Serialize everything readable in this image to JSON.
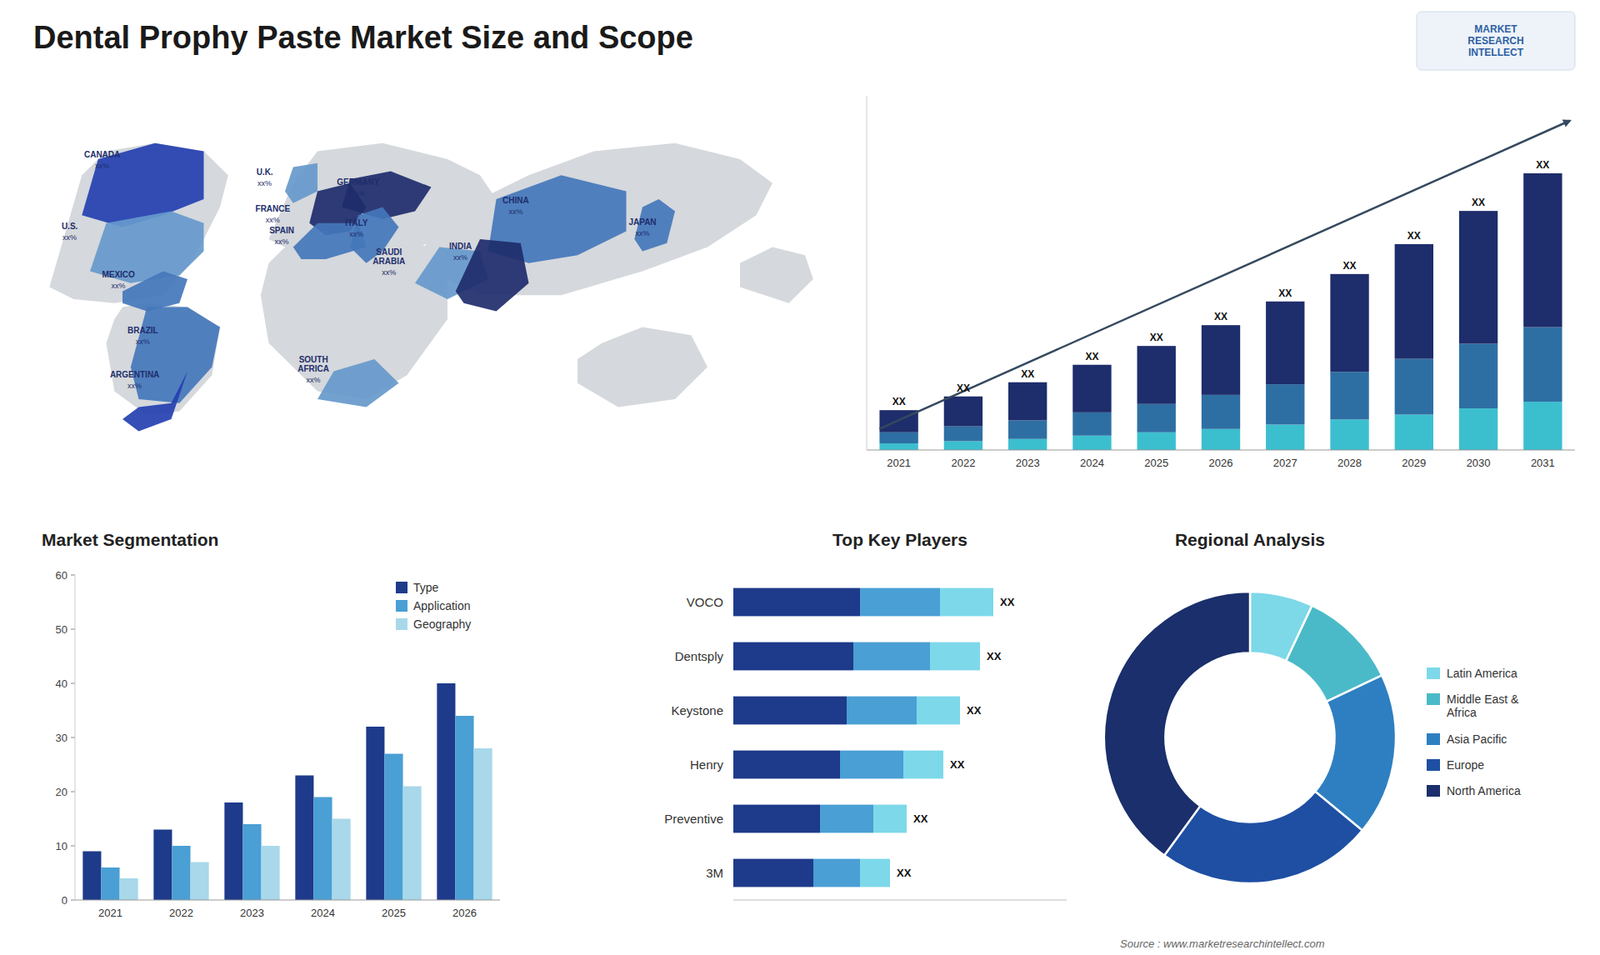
{
  "chart_data": [
    {
      "type": "map",
      "title": "Dental Prophy Paste Market Size and Scope",
      "categories": [
        "CANADA",
        "U.S.",
        "MEXICO",
        "BRAZIL",
        "ARGENTINA",
        "U.K.",
        "FRANCE",
        "SPAIN",
        "GERMANY",
        "ITALY",
        "SAUDI\nARABIA",
        "SOUTH\nAFRICA",
        "CHINA",
        "INDIA",
        "JAPAN"
      ],
      "colors": [
        "#2440b0",
        "#6699cc",
        "#4477bb",
        "#4477bb",
        "#2440b0",
        "#6699cc",
        "#1e2d6b",
        "#4477bb",
        "#1e2d6b",
        "#4477bb",
        "#6699cc",
        "#6699cc",
        "#4477bb",
        "#1e2d6b",
        "#4477bb"
      ],
      "annotations": [
        "xx%",
        "xx%",
        "xx%",
        "xx%",
        "xx%",
        "xx%",
        "xx%",
        "xx%",
        "xx%",
        "xx%",
        "xx%",
        "xx%",
        "xx%",
        "xx%",
        "xx%",
        "MARKET\nRESEARCH\nINTELLECT",
        "Source : www.marketresearchintellect.com"
      ]
    },
    {
      "type": "bar",
      "stacked": true,
      "categories": [
        "2021",
        "2022",
        "2023",
        "2024",
        "2025",
        "2026",
        "2027",
        "2028",
        "2029",
        "2030",
        "2031"
      ],
      "series": [
        {
          "color": "#3bbfcf",
          "values": [
            0.3,
            0.4,
            0.5,
            0.65,
            0.8,
            0.95,
            1.15,
            1.38,
            1.6,
            1.88,
            2.18
          ]
        },
        {
          "color": "#2e6fa3",
          "values": [
            0.5,
            0.67,
            0.84,
            1.05,
            1.28,
            1.54,
            1.82,
            2.15,
            2.52,
            2.92,
            3.37
          ]
        },
        {
          "color": "#1e2d6b",
          "values": [
            1.0,
            1.35,
            1.72,
            2.15,
            2.62,
            3.15,
            3.74,
            4.42,
            5.18,
            6.0,
            6.95
          ]
        }
      ],
      "ylim": [
        0,
        16
      ],
      "tick_labels": "x",
      "grid": false,
      "annotations": [
        "XX",
        "XX",
        "XX",
        "XX",
        "XX",
        "XX",
        "XX",
        "XX",
        "XX",
        "XX",
        "XX"
      ]
    },
    {
      "type": "bar",
      "title": "Market Segmentation",
      "categories": [
        "2021",
        "2022",
        "2023",
        "2024",
        "2025",
        "2026"
      ],
      "series": [
        {
          "name": "Type",
          "color": "#1e3a8a",
          "values": [
            9,
            13,
            18,
            23,
            32,
            40
          ]
        },
        {
          "name": "Application",
          "color": "#4a9fd4",
          "values": [
            6,
            10,
            14,
            19,
            27,
            34
          ]
        },
        {
          "name": "Geography",
          "color": "#a8d8ea",
          "values": [
            4,
            7,
            10,
            15,
            21,
            28
          ]
        }
      ],
      "ylim": [
        0,
        60
      ],
      "yticks": [
        0,
        10,
        20,
        30,
        40,
        50,
        60
      ],
      "legend": "upper right",
      "grid": false
    },
    {
      "type": "bar",
      "orientation": "horizontal",
      "stacked": true,
      "title": "Top Key Players",
      "categories": [
        "VOCO",
        "Dentsply",
        "Keystone",
        "Henry",
        "Preventive",
        "3M"
      ],
      "series": [
        {
          "color": "#1e3a8a",
          "values": [
            0.38,
            0.36,
            0.34,
            0.32,
            0.26,
            0.24
          ]
        },
        {
          "color": "#4a9fd4",
          "values": [
            0.24,
            0.23,
            0.21,
            0.19,
            0.16,
            0.14
          ]
        },
        {
          "color": "#7dd8ea",
          "values": [
            0.16,
            0.15,
            0.13,
            0.12,
            0.1,
            0.09
          ]
        }
      ],
      "xlim": [
        0,
        1
      ],
      "tick_labels": "y",
      "grid": false,
      "annotations": [
        "XX",
        "XX",
        "XX",
        "XX",
        "XX",
        "XX"
      ]
    },
    {
      "type": "donut",
      "title": "Regional Analysis",
      "categories": [
        "Latin America",
        "Middle East &\nAfrica",
        "Asia Pacific",
        "Europe",
        "North America"
      ],
      "values": [
        7,
        11,
        18,
        24,
        40
      ],
      "colors": [
        "#7dd8e8",
        "#4bbac8",
        "#2e7fc1",
        "#1e4fa3",
        "#1a2f6b"
      ],
      "legend": "right"
    }
  ]
}
